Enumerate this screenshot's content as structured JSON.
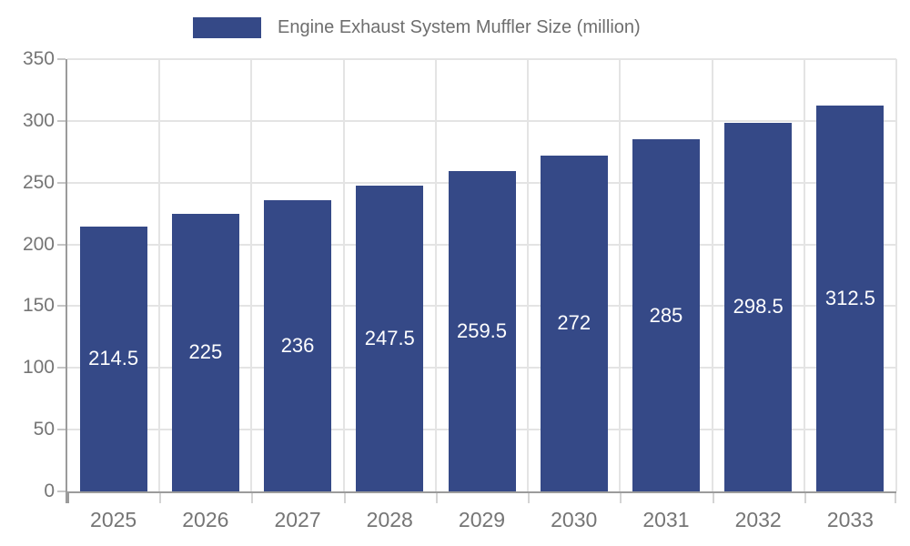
{
  "legend": {
    "label": "Engine Exhaust System Muffler Size (million)"
  },
  "chart_data": {
    "type": "bar",
    "title": "Engine Exhaust System Muffler Size (million)",
    "categories": [
      "2025",
      "2026",
      "2027",
      "2028",
      "2029",
      "2030",
      "2031",
      "2032",
      "2033"
    ],
    "values": [
      214.5,
      225,
      236,
      247.5,
      259.5,
      272,
      285,
      298.5,
      312.5
    ],
    "value_labels": [
      "214.5",
      "225",
      "236",
      "247.5",
      "259.5",
      "272",
      "285",
      "298.5",
      "312.5"
    ],
    "xlabel": "",
    "ylabel": "",
    "ylim": [
      0,
      350
    ],
    "ytick_step": 50,
    "ytick_labels": [
      "0",
      "50",
      "100",
      "150",
      "200",
      "250",
      "300",
      "350"
    ],
    "grid": true,
    "legend_position": "top",
    "colors": {
      "bar": "#354987",
      "bar_label": "#ffffff",
      "axis": "#9b9b9b",
      "gridline": "#e4e4e4",
      "y_tick": "#c6c6c6",
      "x_tick": "#d4d4d4",
      "axis_label": "#757575",
      "legend_text": "#6e6e6e"
    }
  }
}
